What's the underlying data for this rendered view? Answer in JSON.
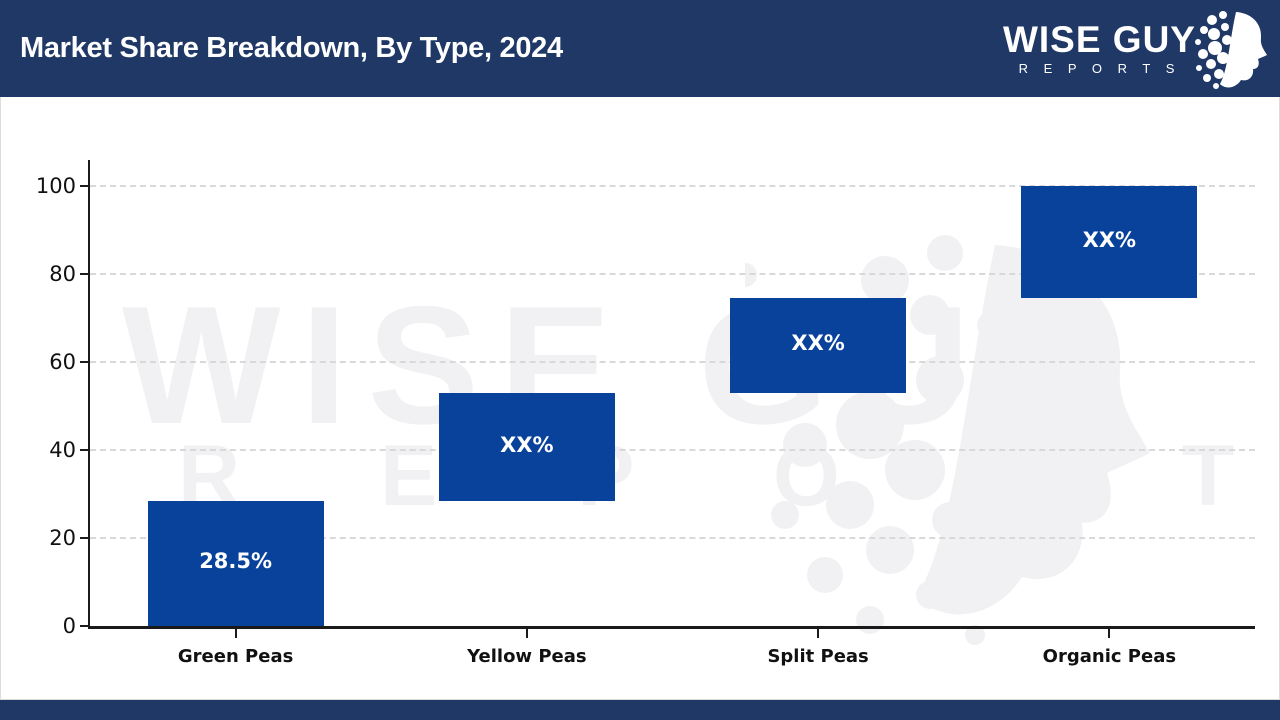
{
  "header": {
    "title": "Market Share Breakdown, By Type, 2024",
    "logo": {
      "brand_line1": "WISE GUY",
      "brand_line2": "R E P O R T S"
    }
  },
  "watermark": {
    "line1": "WISE GUY",
    "line2": "R E P O R T S"
  },
  "colors": {
    "header_bg": "#1f3866",
    "footer_bg": "#1f3866",
    "bar_fill": "#09429b",
    "bar_label_text": "#ffffff",
    "grid_line": "#d8d8d8",
    "axis_line": "#1a1a1a",
    "tick_label_text": "#111111",
    "watermark_gray": "#f1f1f4",
    "background": "#ffffff"
  },
  "chart_data": {
    "type": "bar",
    "subtype": "waterfall",
    "title": "Market Share Breakdown, By Type, 2024",
    "categories": [
      "Green Peas",
      "Yellow Peas",
      "Split Peas",
      "Organic Peas"
    ],
    "segments": [
      {
        "category": "Green Peas",
        "start": 0,
        "end": 28.5,
        "label": "28.5%"
      },
      {
        "category": "Yellow Peas",
        "start": 28.5,
        "end": 53,
        "label": "XX%"
      },
      {
        "category": "Split Peas",
        "start": 53,
        "end": 74.5,
        "label": "XX%"
      },
      {
        "category": "Organic Peas",
        "start": 74.5,
        "end": 100,
        "label": "XX%"
      }
    ],
    "xlabel": "",
    "ylabel": "",
    "ylim": [
      0,
      100
    ],
    "yticks": [
      0,
      20,
      40,
      60,
      80,
      100
    ],
    "grid": "horizontal-dashed",
    "legend": "none",
    "bar_color": "#09429b",
    "value_label_color": "#ffffff"
  }
}
